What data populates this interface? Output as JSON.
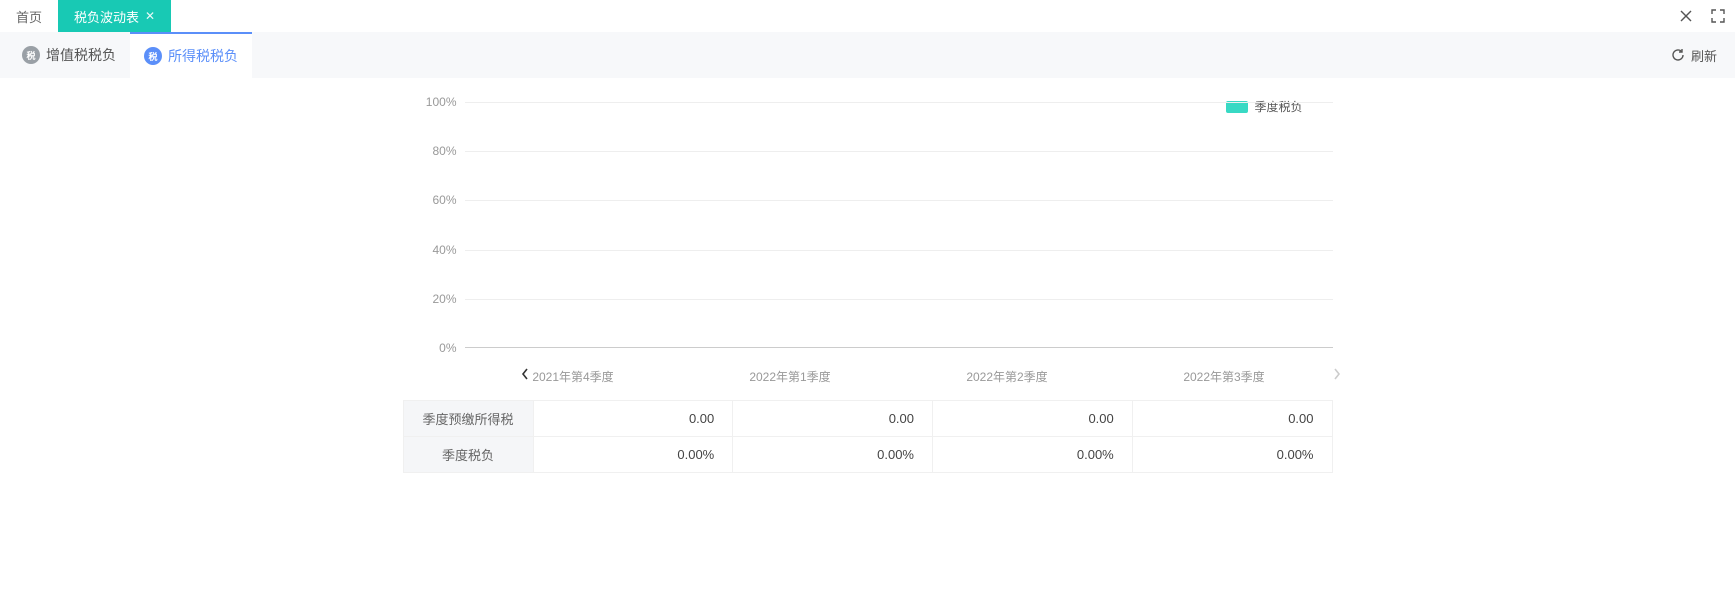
{
  "topbar": {
    "home_label": "首页",
    "active_tab_label": "税负波动表"
  },
  "module_tabs": {
    "vat_label": "增值税税负",
    "income_label": "所得税税负"
  },
  "actions": {
    "refresh_label": "刷新"
  },
  "chart": {
    "type": "bar",
    "legend_label": "季度税负",
    "legend_color": "#38d9c4",
    "ylim": [
      0,
      100
    ],
    "ytick_step": 20,
    "y_ticks": [
      "0%",
      "20%",
      "40%",
      "60%",
      "80%",
      "100%"
    ],
    "grid_color": "#eeeeee",
    "axis_color": "#cccccc",
    "background_color": "#ffffff",
    "label_color": "#999999",
    "label_fontsize": 12,
    "categories": [
      "2021年第4季度",
      "2022年第1季度",
      "2022年第2季度",
      "2022年第3季度"
    ],
    "values": [
      0,
      0,
      0,
      0
    ],
    "bar_color": "#38d9c4"
  },
  "table": {
    "row_headers": [
      "季度预缴所得税",
      "季度税负"
    ],
    "rows": [
      [
        "0.00",
        "0.00",
        "0.00",
        "0.00"
      ],
      [
        "0.00%",
        "0.00%",
        "0.00%",
        "0.00%"
      ]
    ]
  },
  "colors": {
    "accent_green": "#18c9b4",
    "accent_blue": "#5b8ff9",
    "sub_bg": "#f7f8fa"
  }
}
